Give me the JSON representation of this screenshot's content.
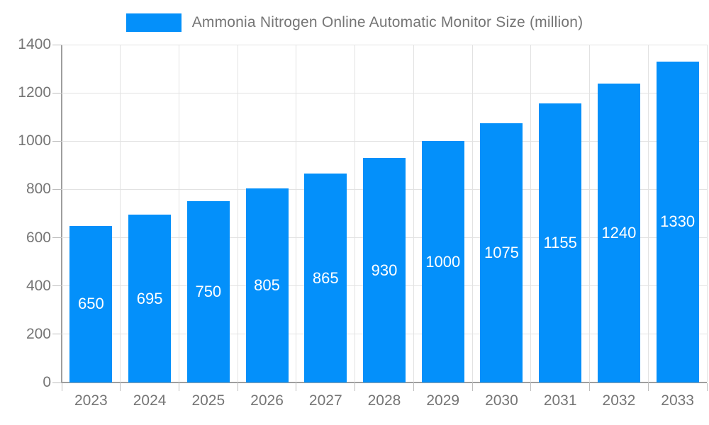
{
  "chart": {
    "legend_label": "Ammonia Nitrogen Online Automatic Monitor Size (million)"
  },
  "chart_data": {
    "type": "bar",
    "title": "Ammonia Nitrogen Online Automatic Monitor Size (million)",
    "categories": [
      "2023",
      "2024",
      "2025",
      "2026",
      "2027",
      "2028",
      "2029",
      "2030",
      "2031",
      "2032",
      "2033"
    ],
    "values": [
      650,
      695,
      750,
      805,
      865,
      930,
      1000,
      1075,
      1155,
      1240,
      1330
    ],
    "xlabel": "",
    "ylabel": "",
    "ylim": [
      0,
      1400
    ],
    "yticks": [
      0,
      200,
      400,
      600,
      800,
      1000,
      1200,
      1400
    ],
    "grid": true,
    "legend_position": "top",
    "bar_color": "#0490fa",
    "value_label_color": "#ffffff",
    "axis_text_color": "#757575",
    "grid_color": "#e2e2e2",
    "axis_line_color": "#9e9e9e",
    "background_color": "#ffffff"
  }
}
